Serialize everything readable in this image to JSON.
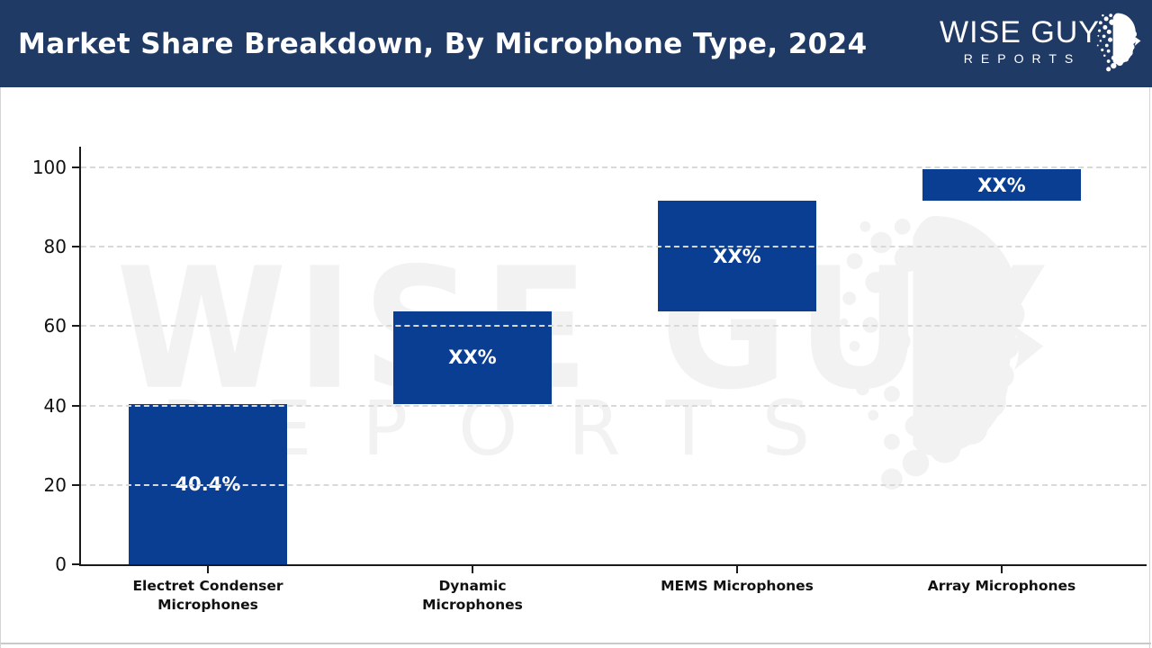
{
  "header": {
    "title": "Market Share Breakdown, By Microphone Type, 2024",
    "logo": {
      "line1": "WISE GUY",
      "line2": "REPORTS"
    }
  },
  "watermark": {
    "line1": "WISE GUY",
    "line2": "REPORTS"
  },
  "chart_data": {
    "type": "bar",
    "subtype": "waterfall",
    "title": "Market Share Breakdown, By Microphone Type, 2024",
    "categories": [
      "Electret Condenser\nMicrophones",
      "Dynamic\nMicrophones",
      "MEMS Microphones",
      "Array Microphones"
    ],
    "segments": [
      {
        "category": "Electret Condenser Microphones",
        "start": 0,
        "end": 40.4,
        "label": "40.4%"
      },
      {
        "category": "Dynamic Microphones",
        "start": 40.4,
        "end": 63.8,
        "label": "XX%"
      },
      {
        "category": "MEMS Microphones",
        "start": 63.8,
        "end": 91.5,
        "label": "XX%"
      },
      {
        "category": "Array Microphones",
        "start": 91.5,
        "end": 99.6,
        "label": "XX%"
      }
    ],
    "ylim": [
      0,
      100
    ],
    "yticks": [
      0,
      20,
      40,
      60,
      80,
      100
    ],
    "grid": "horizontal-dashed",
    "colors": {
      "bar": "#0a3e92",
      "bar_label": "#ffffff",
      "axis": "#1a1a1a",
      "tick_label": "#111111",
      "gridline": "#d9d9d9",
      "header_bg": "#203a66",
      "watermark": "#f2f2f2"
    }
  }
}
